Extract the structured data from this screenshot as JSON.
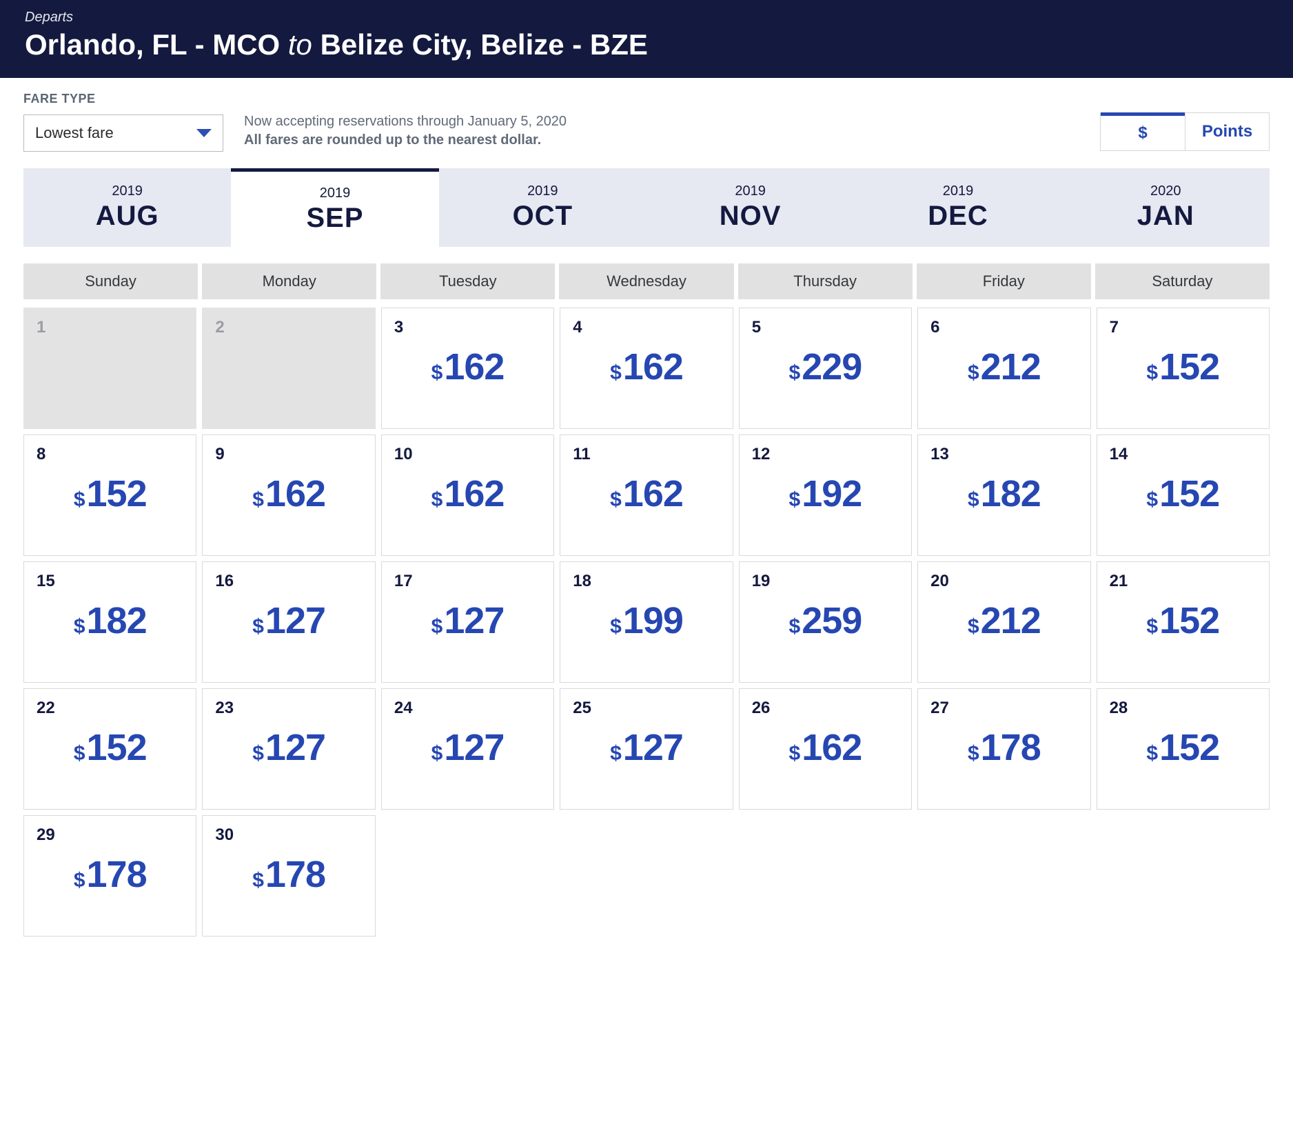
{
  "header": {
    "departs_label": "Departs",
    "origin": "Orlando, FL - MCO",
    "to_word": "to",
    "destination": "Belize City, Belize - BZE"
  },
  "fare_type": {
    "label": "FARE TYPE",
    "selected": "Lowest fare"
  },
  "notes": {
    "line1": "Now accepting reservations through January 5, 2020",
    "line2": "All fares are rounded up to the nearest dollar."
  },
  "currency_toggle": {
    "dollar": "$",
    "points": "Points",
    "active": "dollar"
  },
  "months": [
    {
      "year": "2019",
      "mon": "AUG",
      "active": false
    },
    {
      "year": "2019",
      "mon": "SEP",
      "active": true
    },
    {
      "year": "2019",
      "mon": "OCT",
      "active": false
    },
    {
      "year": "2019",
      "mon": "NOV",
      "active": false
    },
    {
      "year": "2019",
      "mon": "DEC",
      "active": false
    },
    {
      "year": "2020",
      "mon": "JAN",
      "active": false
    }
  ],
  "weekdays": [
    "Sunday",
    "Monday",
    "Tuesday",
    "Wednesday",
    "Thursday",
    "Friday",
    "Saturday"
  ],
  "days": [
    {
      "num": "1",
      "price": null,
      "disabled": true
    },
    {
      "num": "2",
      "price": null,
      "disabled": true
    },
    {
      "num": "3",
      "price": "162"
    },
    {
      "num": "4",
      "price": "162"
    },
    {
      "num": "5",
      "price": "229"
    },
    {
      "num": "6",
      "price": "212"
    },
    {
      "num": "7",
      "price": "152"
    },
    {
      "num": "8",
      "price": "152"
    },
    {
      "num": "9",
      "price": "162"
    },
    {
      "num": "10",
      "price": "162"
    },
    {
      "num": "11",
      "price": "162"
    },
    {
      "num": "12",
      "price": "192"
    },
    {
      "num": "13",
      "price": "182"
    },
    {
      "num": "14",
      "price": "152"
    },
    {
      "num": "15",
      "price": "182"
    },
    {
      "num": "16",
      "price": "127"
    },
    {
      "num": "17",
      "price": "127"
    },
    {
      "num": "18",
      "price": "199"
    },
    {
      "num": "19",
      "price": "259"
    },
    {
      "num": "20",
      "price": "212"
    },
    {
      "num": "21",
      "price": "152"
    },
    {
      "num": "22",
      "price": "152"
    },
    {
      "num": "23",
      "price": "127"
    },
    {
      "num": "24",
      "price": "127"
    },
    {
      "num": "25",
      "price": "127"
    },
    {
      "num": "26",
      "price": "162"
    },
    {
      "num": "27",
      "price": "178"
    },
    {
      "num": "28",
      "price": "152"
    },
    {
      "num": "29",
      "price": "178"
    },
    {
      "num": "30",
      "price": "178"
    }
  ],
  "colors": {
    "header_bg": "#14193f",
    "accent_blue": "#2647b2",
    "month_bg": "#e6e8f2",
    "weekday_bg": "#e1e1e1",
    "disabled_bg": "#e3e3e3",
    "border": "#d9d9d9",
    "text_dark": "#14193f"
  }
}
